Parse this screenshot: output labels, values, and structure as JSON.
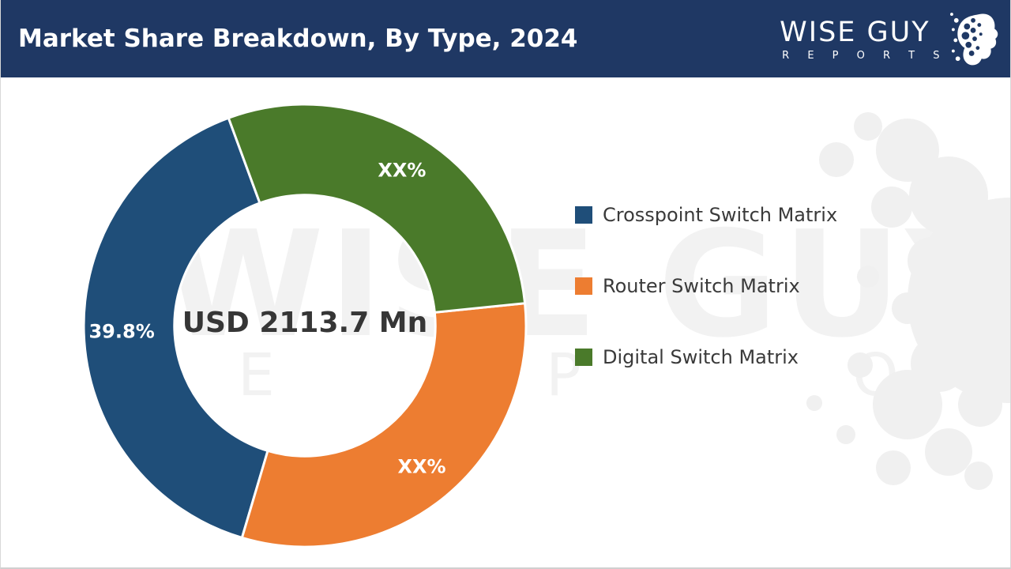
{
  "header": {
    "title": "Market Share Breakdown, By Type, 2024",
    "background_color": "#1f3864",
    "logo": {
      "line1": "WISE GUY",
      "line2": "R E P O R T S"
    }
  },
  "watermark": {
    "line1": "WISE GUY",
    "line2": "E P O"
  },
  "chart_data": {
    "type": "pie",
    "subtype": "donut",
    "title": "Market Share Breakdown, By Type, 2024",
    "center_label": "USD 2113.7 Mn",
    "start_angle_deg": 110.2,
    "direction": "counterclockwise",
    "inner_radius_ratio": 0.59,
    "legend_position": "right",
    "slices": [
      {
        "label": "Crosspoint Switch Matrix",
        "display_value": "39.8%",
        "value_pct": 39.8,
        "color": "#1f4e79"
      },
      {
        "label": "Router Switch Matrix",
        "display_value": "XX%",
        "value_pct": 31.2,
        "color": "#ed7d31"
      },
      {
        "label": "Digital Switch Matrix",
        "display_value": "XX%",
        "value_pct": 29.0,
        "color": "#4a7a2a"
      }
    ]
  }
}
